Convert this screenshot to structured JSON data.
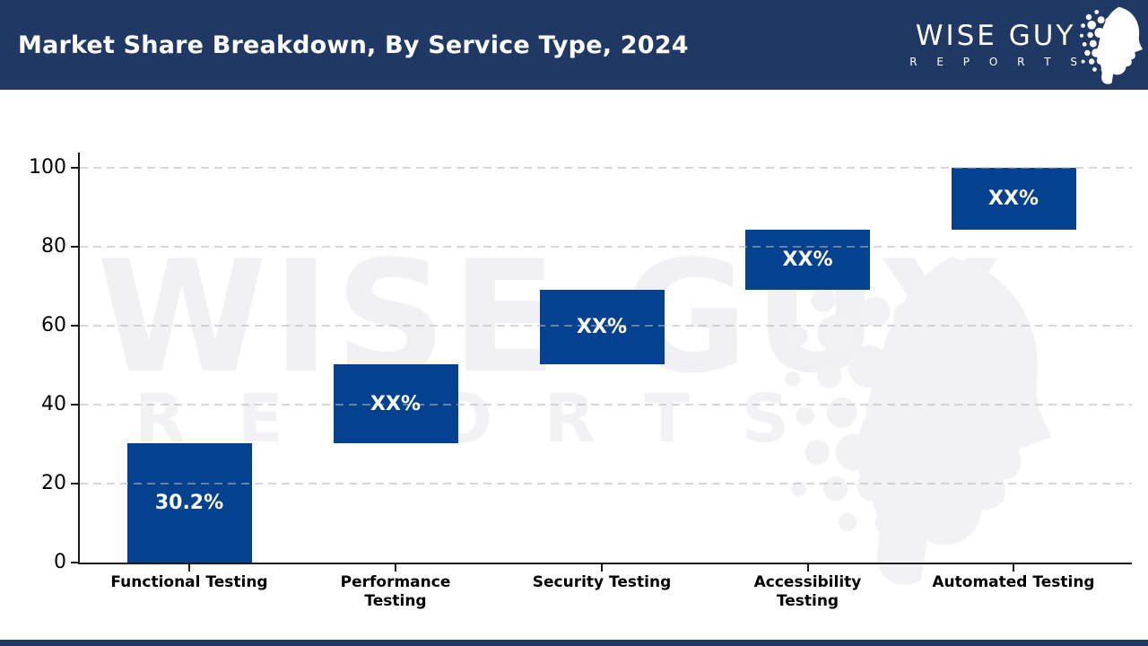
{
  "header": {
    "title": "Market Share Breakdown, By Service Type, 2024",
    "background": "#1f3864",
    "logo": {
      "line1": "WISE GUY",
      "line2": "R E P O R T S"
    }
  },
  "watermark": {
    "line1": "WISE GUY",
    "line2": "REPORTS"
  },
  "footer": {
    "background": "#1f3864"
  },
  "chart_data": {
    "type": "bar",
    "subtype": "waterfall",
    "title": "Market Share Breakdown, By Service Type, 2024",
    "categories": [
      "Functional Testing",
      "Performance Testing",
      "Security Testing",
      "Accessibility Testing",
      "Automated Testing"
    ],
    "categories_display": [
      "Functional Testing",
      "Performance\nTesting",
      "Security Testing",
      "Accessibility\nTesting",
      "Automated Testing"
    ],
    "segments": [
      {
        "category": "Functional Testing",
        "start": 0,
        "end": 30.2,
        "label": "30.2%"
      },
      {
        "category": "Performance Testing",
        "start": 30.2,
        "end": 50.2,
        "label": "XX%"
      },
      {
        "category": "Security Testing",
        "start": 50.2,
        "end": 69.0,
        "label": "XX%"
      },
      {
        "category": "Accessibility Testing",
        "start": 69.0,
        "end": 84.4,
        "label": "XX%"
      },
      {
        "category": "Automated Testing",
        "start": 84.4,
        "end": 100,
        "label": "XX%"
      }
    ],
    "y_ticks": [
      0,
      20,
      40,
      60,
      80,
      100
    ],
    "ylim": [
      0,
      104
    ],
    "xlabel": "",
    "ylabel": "",
    "grid": true,
    "legend": false,
    "bar_color": "#04418f",
    "bar_label_color": "#ffffff",
    "axis_color": "#1a1a1a"
  }
}
